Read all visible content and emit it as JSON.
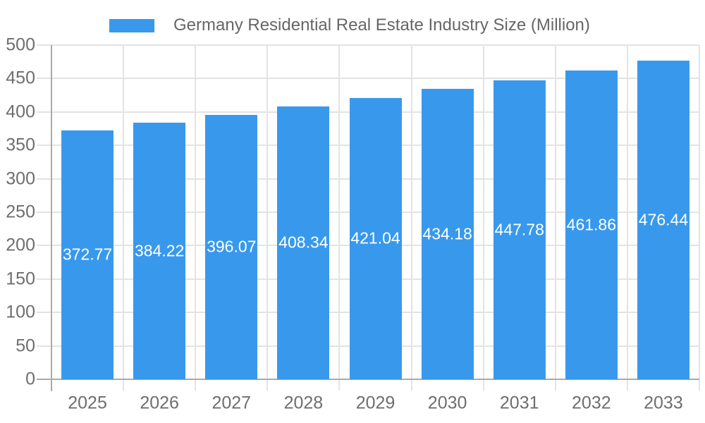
{
  "chart_data": {
    "type": "bar",
    "title": "Germany Residential Real Estate Industry Size (Million)",
    "legend_entries": [
      "Germany Residential Real Estate Industry Size (Million)"
    ],
    "legend_position": "top",
    "categories": [
      "2025",
      "2026",
      "2027",
      "2028",
      "2029",
      "2030",
      "2031",
      "2032",
      "2033"
    ],
    "values": [
      372.77,
      384.22,
      396.07,
      408.34,
      421.04,
      434.18,
      447.78,
      461.86,
      476.44
    ],
    "value_labels": [
      "372.77",
      "384.22",
      "396.07",
      "408.34",
      "421.04",
      "434.18",
      "447.78",
      "461.86",
      "476.44"
    ],
    "xlabel": "",
    "ylabel": "",
    "ylim": [
      0,
      500
    ],
    "ytick_step": 50,
    "ytick_labels": [
      "0",
      "50",
      "100",
      "150",
      "200",
      "250",
      "300",
      "350",
      "400",
      "450",
      "500"
    ],
    "grid": true,
    "colors": {
      "bar": "#3899EC",
      "value_label": "#FFFFFF",
      "axis_line": "#AAAAAA",
      "grid_line": "#E3E3E3",
      "tick_label": "#6E6E6E",
      "legend_text": "#666666",
      "background": "#FFFFFF"
    }
  }
}
